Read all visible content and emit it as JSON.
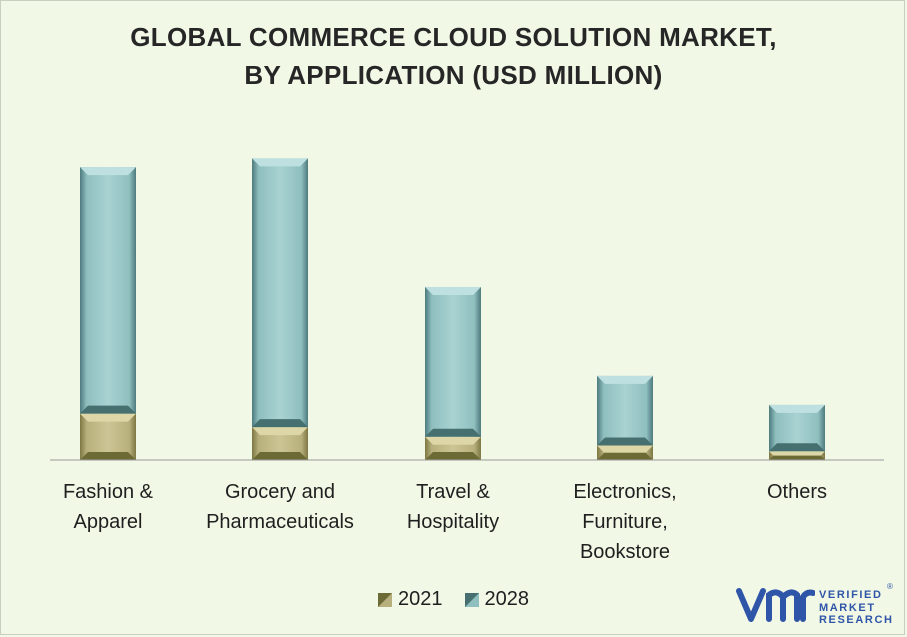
{
  "title_lines": [
    "GLOBAL COMMERCE CLOUD SOLUTION MARKET,",
    "BY APPLICATION (USD MILLION)"
  ],
  "chart_data": {
    "type": "bar",
    "stacked": true,
    "categories": [
      [
        "Fashion &",
        "Apparel"
      ],
      [
        "Grocery and",
        "Pharmaceuticals"
      ],
      [
        "Travel &",
        "Hospitality"
      ],
      [
        "Electronics,",
        "Furniture,",
        "Bookstore"
      ],
      [
        "Others"
      ]
    ],
    "series": [
      {
        "name": "2021",
        "values": [
          48,
          34,
          24,
          15,
          9
        ],
        "color": "#b7b07c"
      },
      {
        "name": "2028",
        "values": [
          255,
          278,
          155,
          72,
          48
        ],
        "color": "#8fbfbf"
      }
    ],
    "ylim": [
      0,
      300
    ],
    "grid": false,
    "legend_position": "bottom"
  },
  "legend": [
    {
      "label": "2021",
      "color": "#8b8a4a"
    },
    {
      "label": "2028",
      "color": "#5f8f92"
    }
  ],
  "logo": {
    "lines": [
      "VERIFIED",
      "MARKET",
      "RESEARCH"
    ],
    "registered": "®",
    "color": "#2f55a8"
  }
}
